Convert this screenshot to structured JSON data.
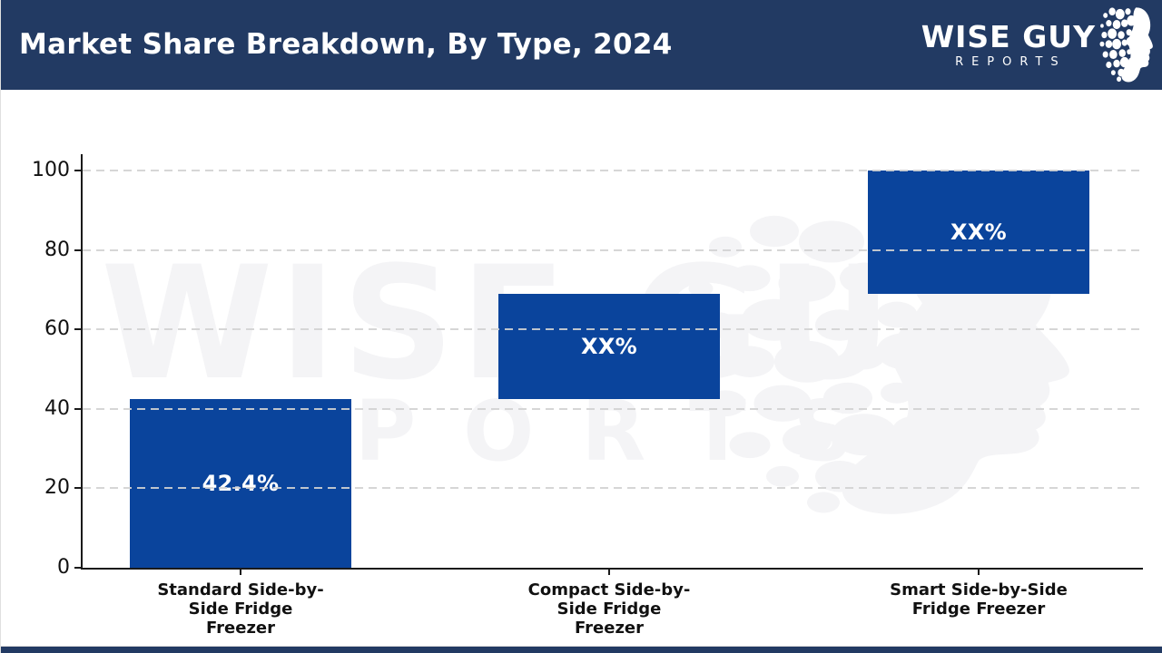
{
  "header": {
    "title": "Market Share Breakdown, By Type, 2024",
    "logo": {
      "name": "WISE GUY",
      "tagline": "REPORTS"
    }
  },
  "watermark": {
    "name": "WISE GUY",
    "tagline": "REPORTS"
  },
  "colors": {
    "header_bg": "#223A63",
    "bar": "#0A449C",
    "grid_dash": "#D2D2D2",
    "axis": "#1A1A1A",
    "value_label": "#FFFFFF",
    "watermark": "#F4F4F6"
  },
  "chart_data": {
    "type": "bar",
    "variant": "stacked-waterfall",
    "title": "Market Share Breakdown, By Type, 2024",
    "categories": [
      "Standard Side-by-Side Fridge Freezer",
      "Compact Side-by-Side Fridge Freezer",
      "Smart Side-by-Side Fridge Freezer"
    ],
    "category_label_lines": [
      [
        "Standard Side-by-",
        "Side Fridge",
        "Freezer"
      ],
      [
        "Compact Side-by-",
        "Side Fridge",
        "Freezer"
      ],
      [
        "Smart Side-by-Side",
        "Fridge Freezer"
      ]
    ],
    "segments": [
      {
        "category": "Standard Side-by-Side Fridge Freezer",
        "start": 0,
        "end": 42.4,
        "label": "42.4%"
      },
      {
        "category": "Compact Side-by-Side Fridge Freezer",
        "start": 42.4,
        "end": 69,
        "label": "XX%"
      },
      {
        "category": "Smart Side-by-Side Fridge Freezer",
        "start": 69,
        "end": 100,
        "label": "XX%"
      }
    ],
    "xlabel": "",
    "ylabel": "",
    "yticks": [
      0,
      20,
      40,
      60,
      80,
      100
    ],
    "ylim": [
      0,
      104
    ],
    "grid": "horizontal-dashed",
    "legend": "none",
    "bar_color": "#0A449C",
    "value_label_color": "#FFFFFF"
  }
}
